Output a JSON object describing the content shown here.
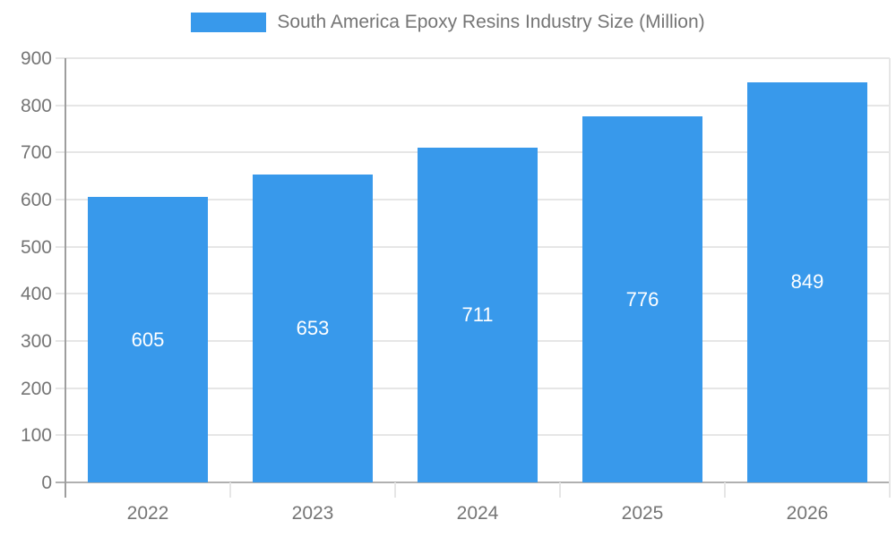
{
  "chart_data": {
    "type": "bar",
    "title": "South America Epoxy Resins Industry Size (Million)",
    "categories": [
      "2022",
      "2023",
      "2024",
      "2025",
      "2026"
    ],
    "values": [
      605,
      653,
      711,
      776,
      849
    ],
    "series": [
      {
        "name": "South America Epoxy Resins Industry Size (Million)",
        "values": [
          605,
          653,
          711,
          776,
          849
        ]
      }
    ],
    "xlabel": "",
    "ylabel": "",
    "ylim": [
      0,
      900
    ],
    "ytick_step": 100,
    "ytick_labels": [
      "0",
      "100",
      "200",
      "300",
      "400",
      "500",
      "600",
      "700",
      "800",
      "900"
    ],
    "grid": true,
    "legend_position": "top",
    "bar_labels_inside": true,
    "colors": {
      "bar": "#3899EB",
      "bar_value_text": "#ffffff",
      "axis_text": "#757575",
      "legend_text": "#757575",
      "gridline": "#e6e6e6",
      "axis_line": "#9e9e9e",
      "baseline": "#b0b0b0",
      "background": "#ffffff"
    }
  }
}
